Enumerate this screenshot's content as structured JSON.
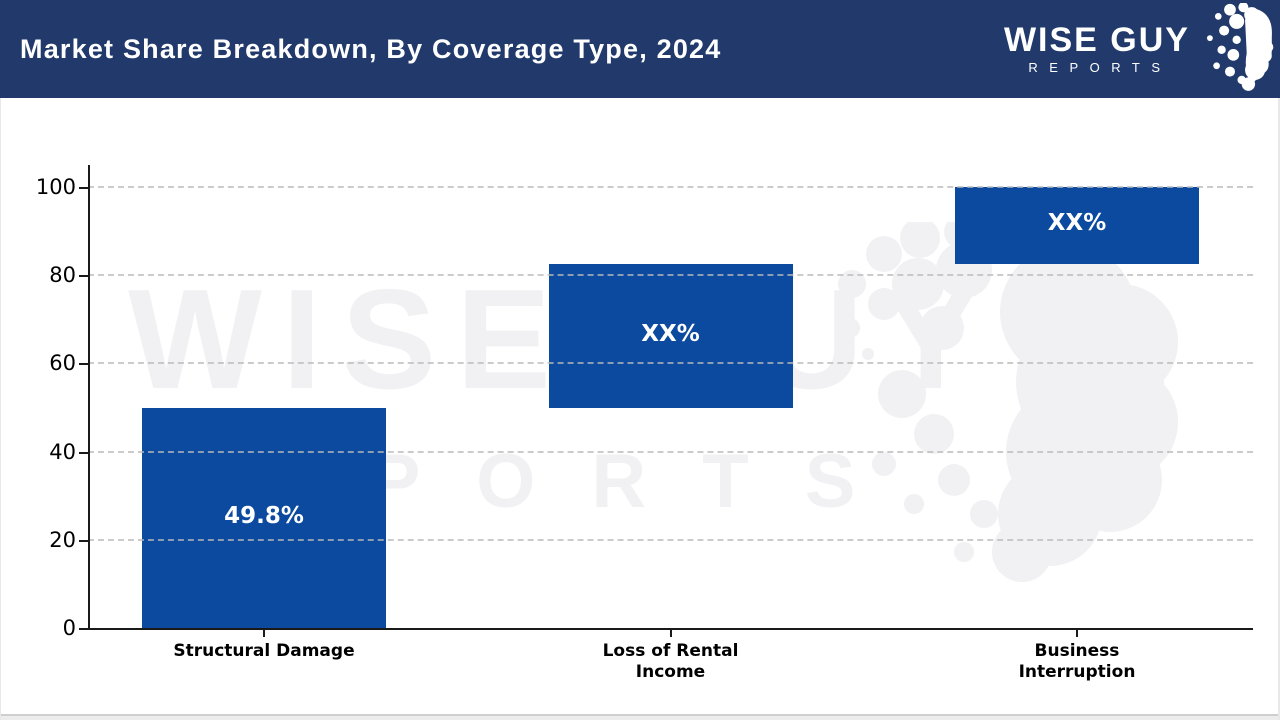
{
  "header": {
    "title": "Market Share Breakdown, By Coverage Type, 2024",
    "bg_color": "#213a6b",
    "logo": {
      "line1": "WISE GUY",
      "line2": "REPORTS"
    }
  },
  "watermark": {
    "line1": "WISE GUY",
    "line2": "REPORTS"
  },
  "colors": {
    "bar": "#0b4a9f",
    "header_bg": "#213a6b",
    "axis": "#1a1a1a",
    "grid": "#b9b9b9",
    "watermark": "#f1f1f3",
    "bar_label": "#ffffff"
  },
  "chart_data": {
    "type": "bar",
    "variant": "stacked-waterfall",
    "title": "Market Share Breakdown, By Coverage Type, 2024",
    "categories": [
      "Structural Damage",
      "Loss of Rental Income",
      "Business Interruption"
    ],
    "category_label_lines": [
      [
        "Structural Damage"
      ],
      [
        "Loss of Rental",
        "Income"
      ],
      [
        "Business",
        "Interruption"
      ]
    ],
    "segments": [
      {
        "category": "Structural Damage",
        "from": 0,
        "to": 49.8,
        "value": 49.8,
        "label": "49.8%"
      },
      {
        "category": "Loss of Rental Income",
        "from": 49.8,
        "to": 82.6,
        "value": 32.8,
        "label": "XX%"
      },
      {
        "category": "Business Interruption",
        "from": 82.6,
        "to": 100,
        "value": 17.4,
        "label": "XX%"
      }
    ],
    "xlabel": "",
    "ylabel": "",
    "ylim": [
      0,
      100
    ],
    "yticks": [
      0,
      20,
      40,
      60,
      80,
      100
    ],
    "grid": {
      "axis": "y",
      "style": "dashed",
      "drawn_over_bars": true
    },
    "bar_color": "#0b4a9f",
    "bar_label_color": "#ffffff",
    "legend": "none"
  }
}
